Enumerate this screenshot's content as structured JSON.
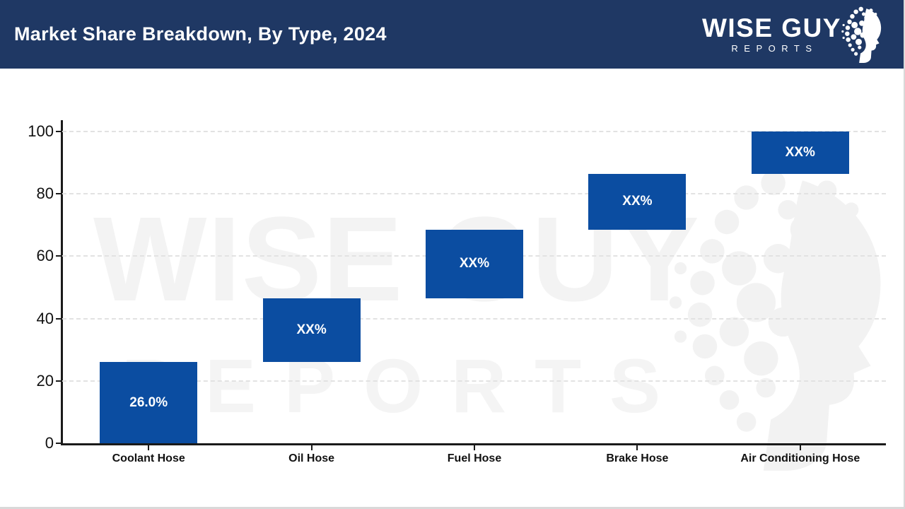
{
  "header": {
    "title": "Market Share Breakdown, By Type, 2024",
    "logo": {
      "line1": "WISE GUY",
      "line2": "REPORTS"
    }
  },
  "watermark": {
    "line1": "WISE GUY",
    "line2": "REPORTS"
  },
  "colors": {
    "header_bg": "#1f3864",
    "bar": "#0b4da1",
    "bar_label": "#ffffff",
    "axis": "#1a1a1a",
    "gridline": "#e2e2e2",
    "watermark_text": "#f3f3f3",
    "page_border": "#d9d9d9"
  },
  "chart_data": {
    "type": "bar",
    "subtype": "floating-segment-waterfall",
    "title": "Market Share Breakdown, By Type, 2024",
    "categories": [
      "Coolant Hose",
      "Oil Hose",
      "Fuel Hose",
      "Brake Hose",
      "Air Conditioning Hose"
    ],
    "series": [
      {
        "name": "Market Share",
        "segments": [
          {
            "category": "Coolant Hose",
            "start": 0,
            "end": 26,
            "label": "26.0%"
          },
          {
            "category": "Oil Hose",
            "start": 26,
            "end": 46.5,
            "label": "XX%"
          },
          {
            "category": "Fuel Hose",
            "start": 46.5,
            "end": 68.5,
            "label": "XX%"
          },
          {
            "category": "Brake Hose",
            "start": 68.5,
            "end": 86.5,
            "label": "XX%"
          },
          {
            "category": "Air Conditioning Hose",
            "start": 86.5,
            "end": 100,
            "label": "XX%"
          }
        ]
      }
    ],
    "xlabel": "",
    "ylabel": "",
    "ylim": [
      0,
      100
    ],
    "yticks": [
      0,
      20,
      40,
      60,
      80,
      100
    ],
    "grid": "horizontal-dashed",
    "legend": "none"
  }
}
